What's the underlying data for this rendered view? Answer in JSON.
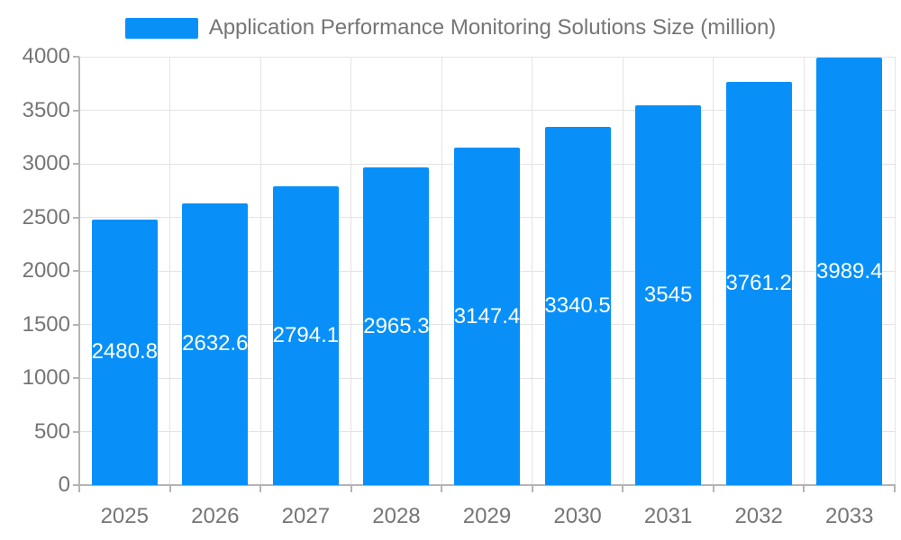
{
  "legend": {
    "label": "Application Performance Monitoring Solutions Size (million)"
  },
  "colors": {
    "bar": "#0890f8",
    "grid": "#e4e4e4",
    "axis": "#b4b4b4",
    "text_gray": "#757575",
    "value_label": "#ffffff",
    "background": "#ffffff"
  },
  "chart_data": {
    "type": "bar",
    "title": "Application Performance Monitoring Solutions Size (million)",
    "categories": [
      "2025",
      "2026",
      "2027",
      "2028",
      "2029",
      "2030",
      "2031",
      "2032",
      "2033"
    ],
    "values": [
      2480.8,
      2632.6,
      2794.1,
      2965.3,
      3147.4,
      3340.5,
      3545,
      3761.2,
      3989.4
    ],
    "value_labels": [
      "2480.8",
      "2632.6",
      "2794.1",
      "2965.3",
      "3147.4",
      "3340.5",
      "3545",
      "3761.2",
      "3989.4"
    ],
    "xlabel": "",
    "ylabel": "",
    "ylim": [
      0,
      4000
    ],
    "ytick_labels": [
      "0",
      "500",
      "1000",
      "1500",
      "2000",
      "2500",
      "3000",
      "3500",
      "4000"
    ],
    "grid": "horizontal and vertical",
    "legend_position": "top-center",
    "value_label_position": "inside-center"
  }
}
